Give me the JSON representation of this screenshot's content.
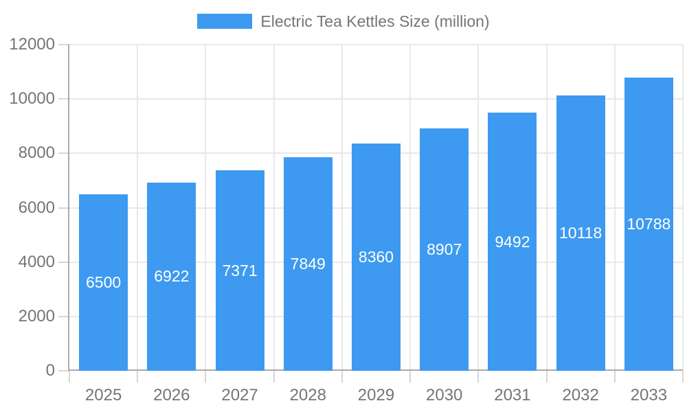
{
  "chart_data": {
    "type": "bar",
    "title": "Electric Tea Kettles Size (million)",
    "legend": {
      "label": "Electric Tea Kettles Size (million)",
      "position": "top-center"
    },
    "categories": [
      "2025",
      "2026",
      "2027",
      "2028",
      "2029",
      "2030",
      "2031",
      "2032",
      "2033"
    ],
    "series": [
      {
        "name": "Electric Tea Kettles Size (million)",
        "values": [
          6500,
          6922,
          7371,
          7849,
          8360,
          8907,
          9492,
          10118,
          10788
        ]
      }
    ],
    "xlabel": "",
    "ylabel": "",
    "ylim": [
      0,
      12000
    ],
    "y_ticks": [
      0,
      2000,
      4000,
      6000,
      8000,
      10000,
      12000
    ],
    "grid": true,
    "value_labels": "inside-center",
    "colors": {
      "bar": "#3D9AF0",
      "value_label": "#FFFFFF",
      "axis_text": "#757575",
      "grid_line": "#E8E8E8",
      "axis_line": "#ABABAB",
      "tick_line": "#D6D6D6",
      "background": "#FFFFFF"
    }
  }
}
